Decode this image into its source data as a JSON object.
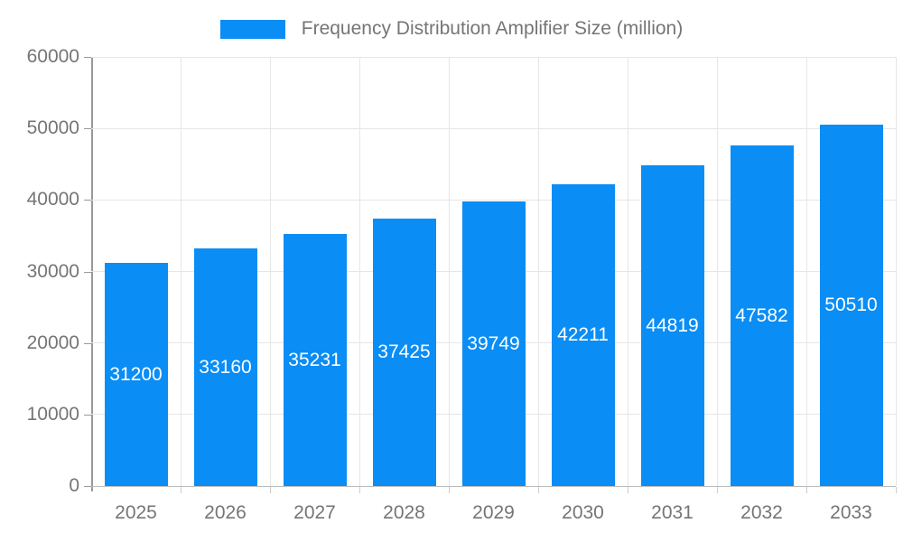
{
  "chart_data": {
    "type": "bar",
    "title": "Frequency Distribution Amplifier Size (million)",
    "legend": {
      "position": "top",
      "entries": [
        "Frequency Distribution Amplifier Size (million)"
      ]
    },
    "categories": [
      "2025",
      "2026",
      "2027",
      "2028",
      "2029",
      "2030",
      "2031",
      "2032",
      "2033"
    ],
    "series": [
      {
        "name": "Frequency Distribution Amplifier Size (million)",
        "values": [
          31200,
          33160,
          35231,
          37425,
          39749,
          42211,
          44819,
          47582,
          50510
        ]
      }
    ],
    "xlabel": "",
    "ylabel": "",
    "ylim": [
      0,
      60000
    ],
    "yticks": [
      0,
      10000,
      20000,
      30000,
      40000,
      50000,
      60000
    ],
    "grid": true,
    "value_labels": "inside-center",
    "colors": {
      "bar": "#0a8df5",
      "value_label_text": "#ffffff",
      "axis_text": "#757575",
      "gridline": "#e6e6e6",
      "axis_line": "#999999",
      "background": "#ffffff"
    }
  }
}
